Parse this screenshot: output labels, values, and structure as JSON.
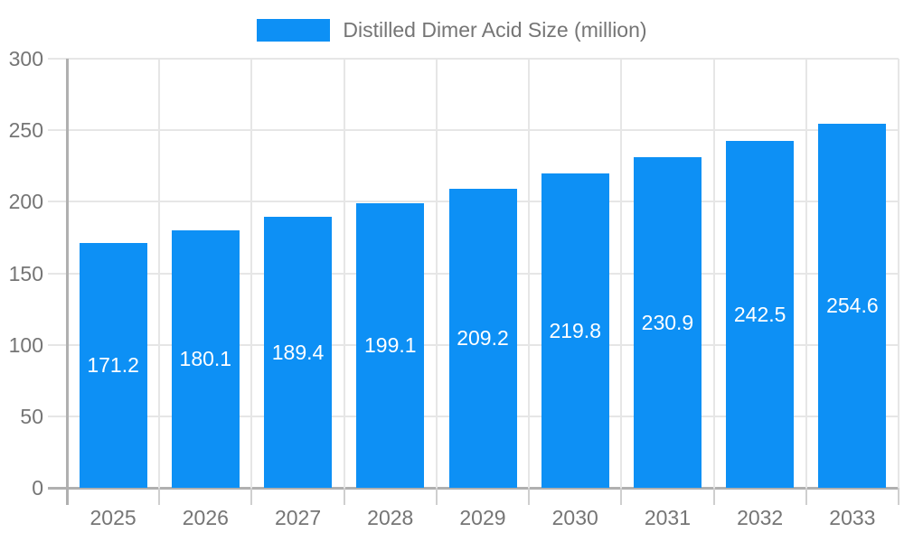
{
  "chart_data": {
    "type": "bar",
    "title": "Distilled Dimer Acid Size (million)",
    "categories": [
      "2025",
      "2026",
      "2027",
      "2028",
      "2029",
      "2030",
      "2031",
      "2032",
      "2033"
    ],
    "values": [
      171.2,
      180.1,
      189.4,
      199.1,
      209.2,
      219.8,
      230.9,
      242.5,
      254.6
    ],
    "xlabel": "",
    "ylabel": "",
    "ylim": [
      0,
      300
    ],
    "yticks": [
      0,
      50,
      100,
      150,
      200,
      250,
      300
    ],
    "grid": true,
    "legend_position": "top",
    "legend_entries": [
      "Distilled Dimer Acid Size (million)"
    ],
    "colors": {
      "bar": "#0d90f5",
      "bar_value_text": "#ffffff",
      "axis_text": "#757575",
      "axis_line": "#b0b0b0",
      "gridline": "#e6e6e6",
      "tick": "#cfcfcf",
      "background": "#ffffff"
    }
  }
}
